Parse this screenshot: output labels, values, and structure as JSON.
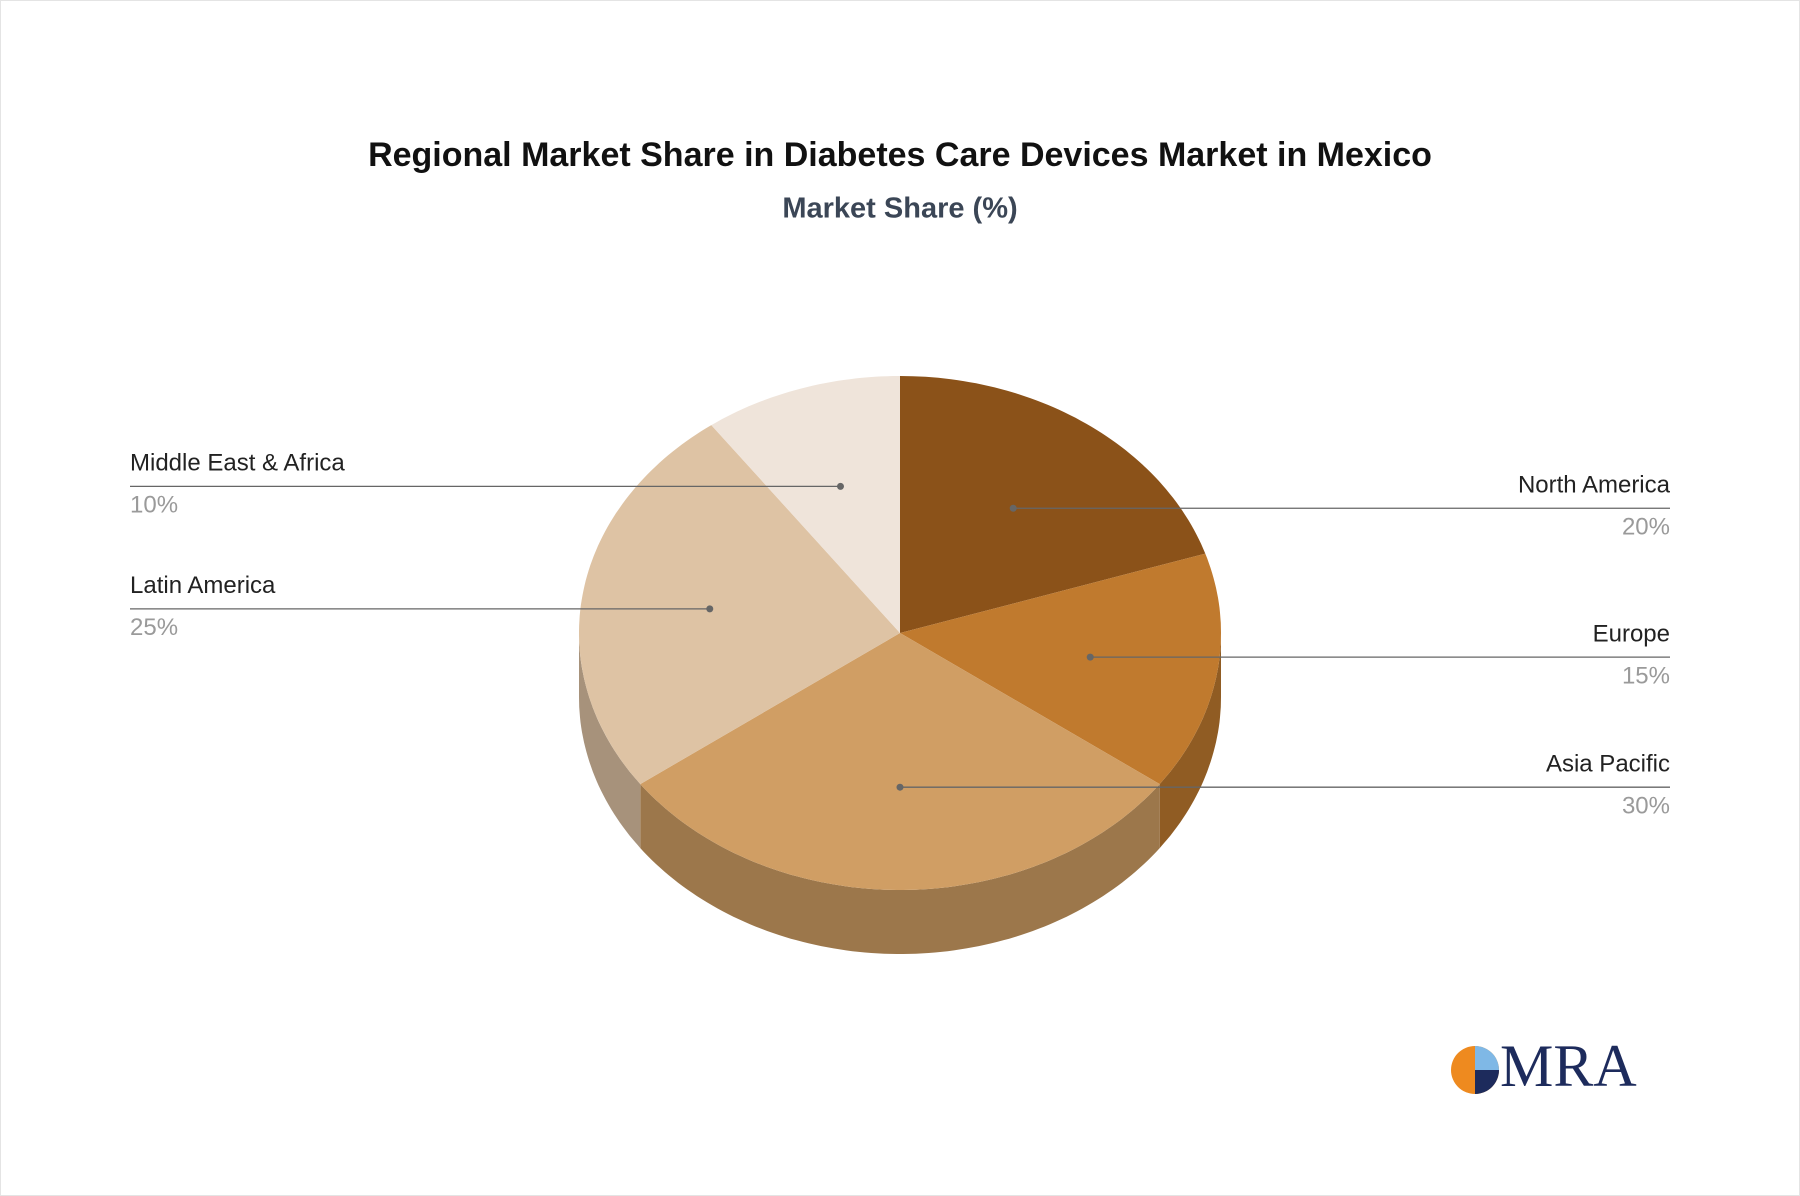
{
  "chart_data": {
    "type": "pie3d",
    "title": "Regional Market Share in Diabetes Care Devices Market in Mexico",
    "subtitle": "Market Share (%)",
    "categories": [
      "North America",
      "Europe",
      "Asia Pacific",
      "Latin America",
      "Middle East & Africa"
    ],
    "values": [
      20,
      15,
      30,
      25,
      10
    ],
    "value_labels": [
      "20%",
      "15%",
      "30%",
      "25%",
      "10%"
    ],
    "colors": [
      "#8B5219",
      "#C07A2E",
      "#D09E64",
      "#DEC3A4",
      "#EFE4DA"
    ]
  },
  "logo": "MRA"
}
